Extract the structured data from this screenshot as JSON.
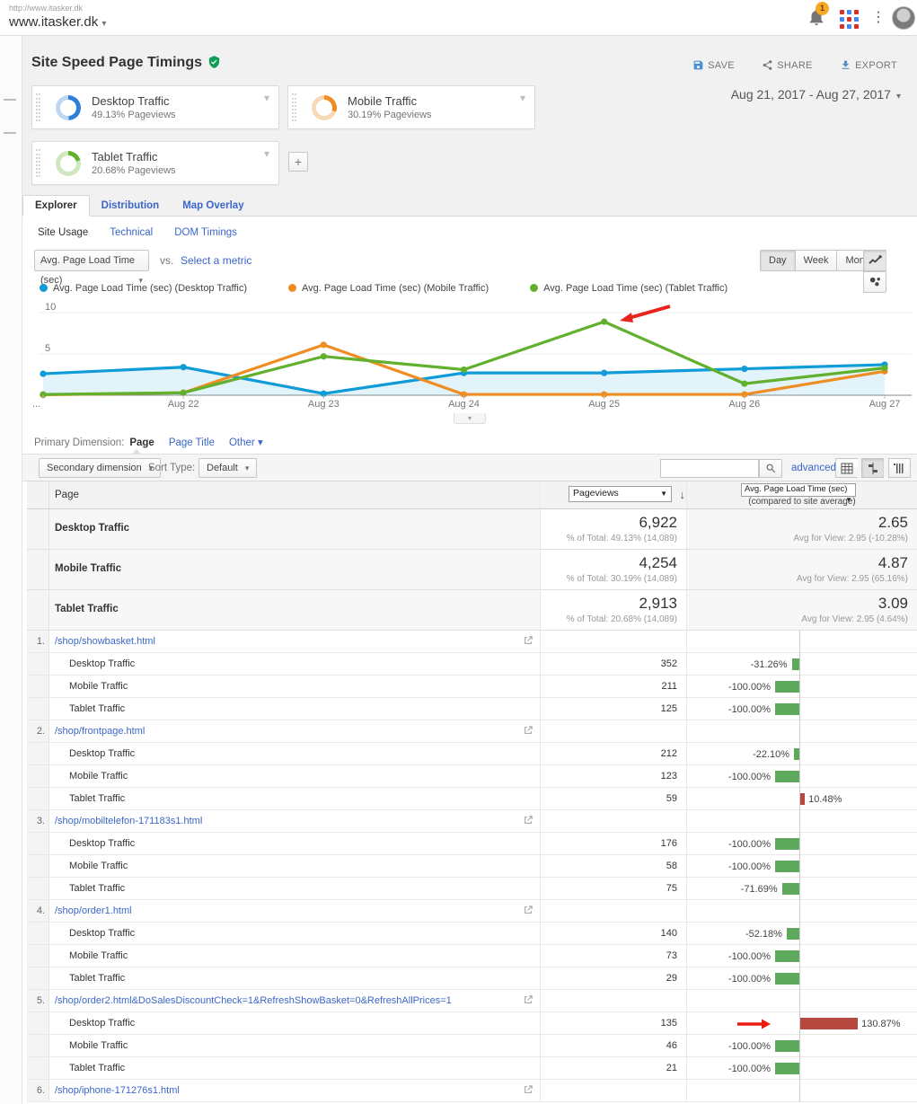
{
  "topbar": {
    "property_url": "http://www.itasker.dk",
    "property_name": "www.itasker.dk",
    "notification_count": "1"
  },
  "report": {
    "title": "Site Speed Page Timings",
    "save_label": "SAVE",
    "share_label": "SHARE",
    "export_label": "EXPORT",
    "date_range": "Aug 21, 2017 - Aug 27, 2017"
  },
  "segments": [
    {
      "name": "Desktop Traffic",
      "sub": "49.13% Pageviews",
      "pct": 49.13,
      "color": "#2f7ed8",
      "track": "#bdd7f0"
    },
    {
      "name": "Mobile Traffic",
      "sub": "30.19% Pageviews",
      "pct": 30.19,
      "color": "#ef8d22",
      "track": "#f8d9b6"
    },
    {
      "name": "Tablet Traffic",
      "sub": "20.68% Pageviews",
      "pct": 20.68,
      "color": "#61b02e",
      "track": "#cfe7bf"
    }
  ],
  "add_segment_label": "+",
  "tabs": [
    {
      "label": "Explorer",
      "active": true
    },
    {
      "label": "Distribution",
      "active": false
    },
    {
      "label": "Map Overlay",
      "active": false
    }
  ],
  "subtabs": [
    {
      "label": "Site Usage",
      "active": true
    },
    {
      "label": "Technical",
      "active": false
    },
    {
      "label": "DOM Timings",
      "active": false
    }
  ],
  "metric_bar": {
    "metric_select": "Avg. Page Load Time (sec)",
    "vs_label": "vs.",
    "select_metric_label": "Select a metric",
    "granularity": [
      "Day",
      "Week",
      "Month"
    ],
    "granularity_active": "Day"
  },
  "chart_data": {
    "type": "line",
    "title": "Avg. Page Load Time (sec) by day per segment",
    "x": [
      "Aug 21",
      "Aug 22",
      "Aug 23",
      "Aug 24",
      "Aug 25",
      "Aug 26",
      "Aug 27"
    ],
    "x_tick_labels": [
      "...",
      "Aug 22",
      "Aug 23",
      "Aug 24",
      "Aug 25",
      "Aug 26",
      "Aug 27"
    ],
    "ylim": [
      0,
      10
    ],
    "yticks": [
      5,
      10
    ],
    "grid": true,
    "legend_position": "top",
    "series": [
      {
        "name": "Avg. Page Load Time (sec) (Desktop Traffic)",
        "color": "#0e9bd8",
        "area_fill": true,
        "values": [
          2.6,
          3.4,
          0.2,
          2.7,
          2.7,
          3.2,
          3.7
        ]
      },
      {
        "name": "Avg. Page Load Time (sec) (Mobile Traffic)",
        "color": "#ef8d22",
        "area_fill": false,
        "values": [
          0.05,
          0.3,
          6.1,
          0.1,
          0.1,
          0.1,
          2.9
        ]
      },
      {
        "name": "Avg. Page Load Time (sec) (Tablet Traffic)",
        "color": "#61b02e",
        "area_fill": false,
        "values": [
          0.1,
          0.3,
          4.7,
          3.1,
          8.9,
          1.4,
          3.3
        ]
      }
    ],
    "annotation": "red arrow pointing at Tablet Traffic peak on Aug 25"
  },
  "primary_dimension": {
    "label": "Primary Dimension:",
    "options": [
      {
        "label": "Page",
        "active": true
      },
      {
        "label": "Page Title",
        "active": false
      },
      {
        "label": "Other",
        "active": false,
        "caret": true
      }
    ]
  },
  "toolbar": {
    "secondary_dimension_label": "Secondary dimension",
    "sort_type_label": "Sort Type:",
    "sort_type_value": "Default",
    "search_value": "",
    "advanced_label": "advanced"
  },
  "table": {
    "columns": {
      "page": "Page",
      "pageviews": "Pageviews",
      "metric": "Avg. Page Load Time (sec)",
      "metric_note": "(compared to site average)"
    },
    "summary_rows": [
      {
        "name": "Desktop Traffic",
        "pageviews": "6,922",
        "pageviews_sub": "% of Total: 49.13% (14,089)",
        "metric": "2.65",
        "metric_sub": "Avg for View: 2.95 (-10.28%)"
      },
      {
        "name": "Mobile Traffic",
        "pageviews": "4,254",
        "pageviews_sub": "% of Total: 30.19% (14,089)",
        "metric": "4.87",
        "metric_sub": "Avg for View: 2.95 (65.16%)"
      },
      {
        "name": "Tablet Traffic",
        "pageviews": "2,913",
        "pageviews_sub": "% of Total: 20.68% (14,089)",
        "metric": "3.09",
        "metric_sub": "Avg for View: 2.95 (4.64%)"
      }
    ],
    "row_groups": [
      {
        "num": "1.",
        "url": "/shop/showbasket.html",
        "rows": [
          {
            "segment": "Desktop Traffic",
            "pageviews": "352",
            "pct": -31.26,
            "pct_label": "-31.26%"
          },
          {
            "segment": "Mobile Traffic",
            "pageviews": "211",
            "pct": -100.0,
            "pct_label": "-100.00%"
          },
          {
            "segment": "Tablet Traffic",
            "pageviews": "125",
            "pct": -100.0,
            "pct_label": "-100.00%"
          }
        ]
      },
      {
        "num": "2.",
        "url": "/shop/frontpage.html",
        "rows": [
          {
            "segment": "Desktop Traffic",
            "pageviews": "212",
            "pct": -22.1,
            "pct_label": "-22.10%"
          },
          {
            "segment": "Mobile Traffic",
            "pageviews": "123",
            "pct": -100.0,
            "pct_label": "-100.00%"
          },
          {
            "segment": "Tablet Traffic",
            "pageviews": "59",
            "pct": 10.48,
            "pct_label": "10.48%"
          }
        ]
      },
      {
        "num": "3.",
        "url": "/shop/mobiltelefon-171183s1.html",
        "rows": [
          {
            "segment": "Desktop Traffic",
            "pageviews": "176",
            "pct": -100.0,
            "pct_label": "-100.00%"
          },
          {
            "segment": "Mobile Traffic",
            "pageviews": "58",
            "pct": -100.0,
            "pct_label": "-100.00%"
          },
          {
            "segment": "Tablet Traffic",
            "pageviews": "75",
            "pct": -71.69,
            "pct_label": "-71.69%"
          }
        ]
      },
      {
        "num": "4.",
        "url": "/shop/order1.html",
        "rows": [
          {
            "segment": "Desktop Traffic",
            "pageviews": "140",
            "pct": -52.18,
            "pct_label": "-52.18%"
          },
          {
            "segment": "Mobile Traffic",
            "pageviews": "73",
            "pct": -100.0,
            "pct_label": "-100.00%"
          },
          {
            "segment": "Tablet Traffic",
            "pageviews": "29",
            "pct": -100.0,
            "pct_label": "-100.00%"
          }
        ]
      },
      {
        "num": "5.",
        "url": "/shop/order2.html&DoSalesDiscountCheck=1&RefreshShowBasket=0&RefreshAllPrices=1",
        "rows": [
          {
            "segment": "Desktop Traffic",
            "pageviews": "135",
            "pct": 130.87,
            "pct_label": "130.87%",
            "arrow": true
          },
          {
            "segment": "Mobile Traffic",
            "pageviews": "46",
            "pct": -100.0,
            "pct_label": "-100.00%"
          },
          {
            "segment": "Tablet Traffic",
            "pageviews": "21",
            "pct": -100.0,
            "pct_label": "-100.00%"
          }
        ]
      },
      {
        "num": "6.",
        "url": "/shop/iphone-171276s1.html",
        "rows": []
      }
    ]
  }
}
